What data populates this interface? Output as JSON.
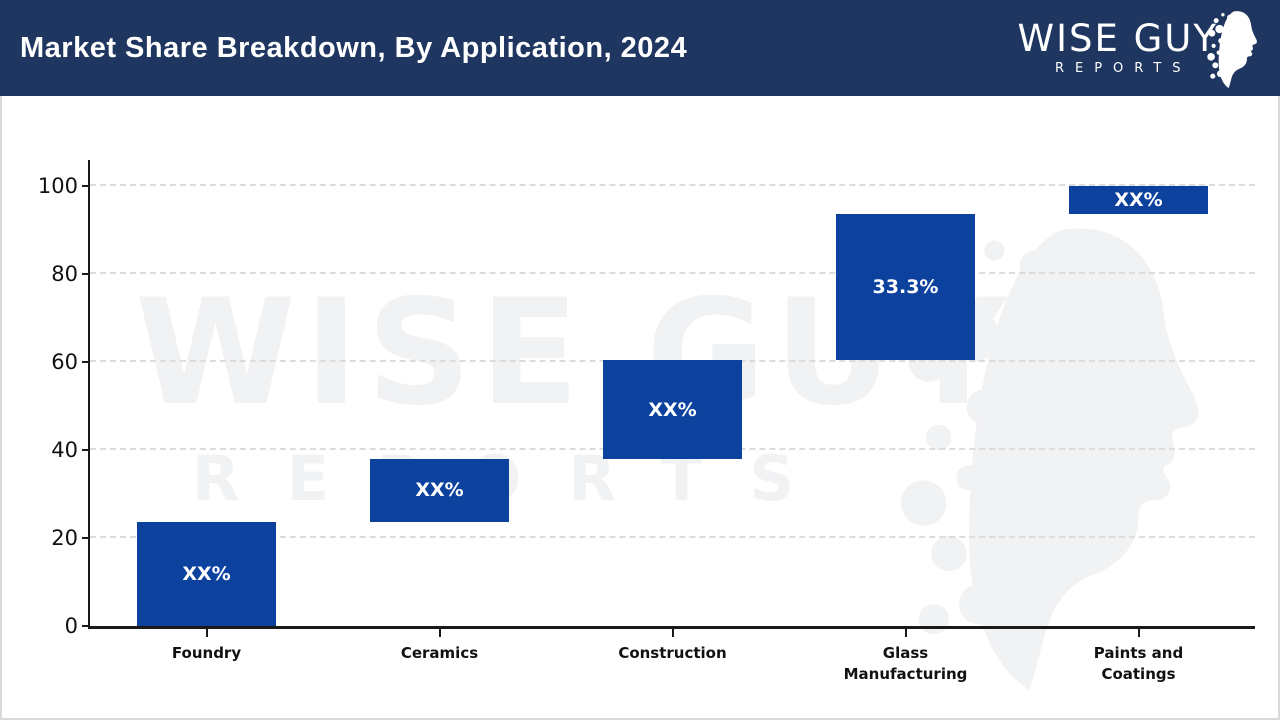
{
  "header": {
    "title": "Market Share Breakdown, By Application, 2024",
    "logo": {
      "line1": "WISE GUY",
      "line2": "REPORTS"
    },
    "bg_color": "#1f3660"
  },
  "watermark": {
    "line1": "WISE GUY",
    "line2": "REPORTS"
  },
  "colors": {
    "bar": "#0c429e",
    "axis": "#1a1a1a",
    "grid": "#dcdcdc",
    "watermark": "#f1f2f4",
    "frame": "#d9d9d9"
  },
  "chart_data": {
    "type": "bar",
    "subtype": "waterfall",
    "title": "Market Share Breakdown, By Application, 2024",
    "xlabel": "",
    "ylabel": "",
    "ylim": [
      0,
      100
    ],
    "y_ticks": [
      0,
      20,
      40,
      60,
      80,
      100
    ],
    "grid": "horizontal-dashed",
    "legend": "none",
    "bar_color": "#0c429e",
    "categories": [
      "Foundry",
      "Ceramics",
      "Construction",
      "Glass\nManufacturing",
      "Paints and\nCoatings"
    ],
    "segments": [
      {
        "category": "Foundry",
        "start": 0,
        "end": 23.7,
        "value": 23.7,
        "label": "XX%"
      },
      {
        "category": "Ceramics",
        "start": 23.7,
        "end": 38.0,
        "value": 14.3,
        "label": "XX%"
      },
      {
        "category": "Construction",
        "start": 38.0,
        "end": 60.4,
        "value": 22.4,
        "label": "XX%"
      },
      {
        "category": "Glass Manufacturing",
        "start": 60.4,
        "end": 93.7,
        "value": 33.3,
        "label": "33.3%"
      },
      {
        "category": "Paints and Coatings",
        "start": 93.7,
        "end": 100,
        "value": 6.3,
        "label": "XX%"
      }
    ]
  }
}
